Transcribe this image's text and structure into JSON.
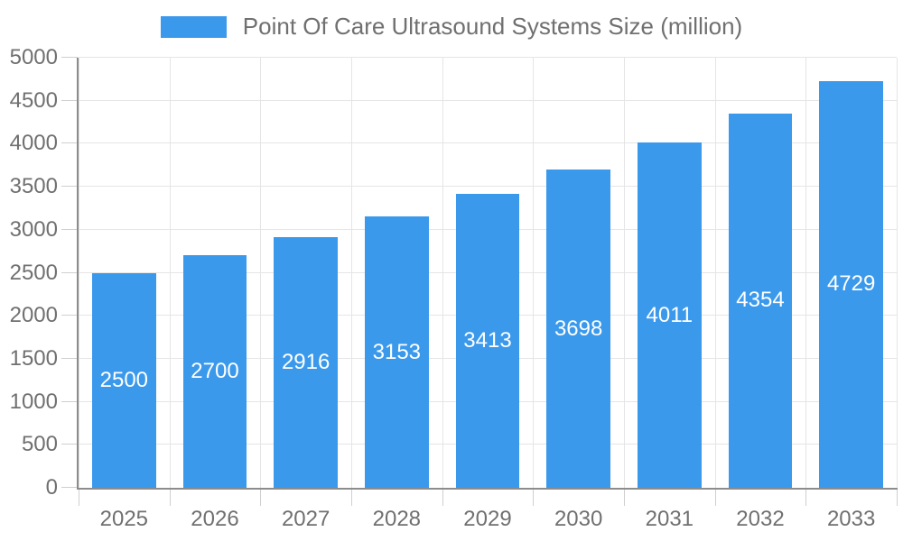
{
  "legend": {
    "position": "top",
    "swatch": "series-color-swatch"
  },
  "chart_data": {
    "type": "bar",
    "title": "Point Of Care Ultrasound Systems Size (million)",
    "categories": [
      "2025",
      "2026",
      "2027",
      "2028",
      "2029",
      "2030",
      "2031",
      "2032",
      "2033"
    ],
    "values": [
      2500,
      2700,
      2916,
      3153,
      3413,
      3698,
      4011,
      4354,
      4729
    ],
    "xlabel": "",
    "ylabel": "",
    "ylim": [
      0,
      5000
    ],
    "yticks": [
      0,
      500,
      1000,
      1500,
      2000,
      2500,
      3000,
      3500,
      4000,
      4500,
      5000
    ],
    "bar_value_labels": [
      "2500",
      "2700",
      "2916",
      "3153",
      "3413",
      "3698",
      "4011",
      "4354",
      "4729"
    ],
    "grid": true,
    "legend_position": "top"
  },
  "colors": {
    "bar": "#3B99EC",
    "bar_label": "#FFFFFF",
    "grid": "#E5E5E5",
    "tick": "#CFCFCF",
    "axis": "#8C8C8C",
    "text": "#707070",
    "background": "#FFFFFF"
  }
}
